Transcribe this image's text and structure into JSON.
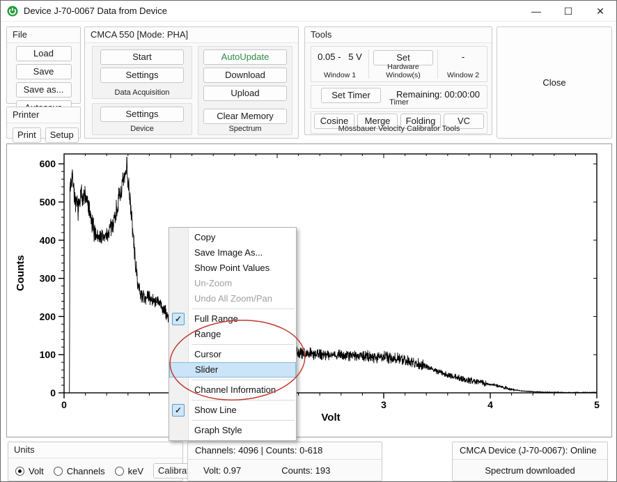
{
  "window": {
    "title": "Device J-70-0067 Data from Device",
    "controls": {
      "minimize": "—",
      "maximize": "☐",
      "close": "✕"
    }
  },
  "panels": {
    "file": {
      "title": "File",
      "load": "Load",
      "save": "Save",
      "save_as": "Save as...",
      "autosave": "Autosave"
    },
    "printer": {
      "title": "Printer",
      "print": "Print",
      "setup": "Setup"
    },
    "cmca": {
      "title": "CMCA 550 [Mode: PHA]",
      "start": "Start",
      "da_settings": "Settings",
      "da_caption": "Data Acquisition",
      "device_settings": "Settings",
      "device_caption": "Device",
      "autoupdate": "AutoUpdate",
      "autoupdate_color": "#2e8b46",
      "download": "Download",
      "upload": "Upload",
      "clear_memory": "Clear Memory",
      "spectrum_caption": "Spectrum"
    },
    "tools": {
      "title": "Tools",
      "window1_low": "0.05",
      "window1_dash": "-",
      "window1_high": "5 V",
      "window1_caption": "Window 1",
      "set_button": "Set",
      "hw_caption": "Hardware Window(s)",
      "window2_value": "-",
      "window2_caption": "Window 2",
      "set_timer": "Set Timer",
      "remaining": "Remaining: 00:00:00",
      "timer_caption": "Timer",
      "cosine": "Cosine",
      "merge": "Merge",
      "folding": "Folding",
      "vc": "VC",
      "moss_caption": "Mössbauer Velocity Calibrator Tools"
    },
    "close_button": "Close"
  },
  "context_menu": {
    "highlight_color": "#cce4f7",
    "check_glyph": "✓",
    "items": [
      {
        "label": "Copy"
      },
      {
        "label": "Save Image As..."
      },
      {
        "label": "Show Point Values"
      },
      {
        "label": "Un-Zoom",
        "disabled": true
      },
      {
        "label": "Undo All Zoom/Pan",
        "disabled": true
      },
      {
        "label": "Full Range",
        "checked": true
      },
      {
        "label": "Range"
      },
      {
        "label": "Cursor"
      },
      {
        "label": "Slider",
        "highlighted": true
      },
      {
        "label": "Channel Information"
      },
      {
        "label": "Show Line",
        "checked": true
      },
      {
        "label": "Graph Style"
      }
    ]
  },
  "statusbar": {
    "units": {
      "title": "Units",
      "volt": "Volt",
      "channels": "Channels",
      "kev": "keV",
      "calibrate": "Calibrate",
      "selected": "Volt"
    },
    "readout": {
      "header": "Channels: 4096 | Counts: 0-618",
      "volt": "Volt: 0.97",
      "counts": "Counts: 193"
    },
    "device": {
      "header": "CMCA Device (J-70-0067): Online",
      "status": "Spectrum downloaded"
    }
  },
  "annotation": {
    "shape": "ellipse",
    "color": "#c23a32"
  },
  "chart_data": {
    "type": "line",
    "xlabel": "Volt",
    "ylabel": "Counts",
    "xlim": [
      0,
      5
    ],
    "ylim": [
      0,
      626
    ],
    "xticks": [
      0,
      1,
      2,
      3,
      4,
      5
    ],
    "yticks": [
      0,
      100,
      200,
      300,
      400,
      500,
      600
    ],
    "x_minor_step": 0.2,
    "y_minor_step": 20,
    "counts_range_shown": "0-618",
    "series": [
      {
        "name": "PHA spectrum",
        "color": "#000000",
        "peak_volt": 0.59,
        "peak_counts": 618,
        "envelope": [
          [
            0.05,
            0
          ],
          [
            0.055,
            540
          ],
          [
            0.065,
            555
          ],
          [
            0.075,
            570
          ],
          [
            0.085,
            555
          ],
          [
            0.095,
            525
          ],
          [
            0.11,
            485
          ],
          [
            0.125,
            495
          ],
          [
            0.135,
            480
          ],
          [
            0.15,
            505
          ],
          [
            0.165,
            525
          ],
          [
            0.18,
            510
          ],
          [
            0.195,
            520
          ],
          [
            0.21,
            505
          ],
          [
            0.225,
            490
          ],
          [
            0.24,
            470
          ],
          [
            0.26,
            445
          ],
          [
            0.28,
            425
          ],
          [
            0.31,
            412
          ],
          [
            0.35,
            408
          ],
          [
            0.39,
            410
          ],
          [
            0.42,
            418
          ],
          [
            0.45,
            438
          ],
          [
            0.48,
            465
          ],
          [
            0.51,
            500
          ],
          [
            0.54,
            535
          ],
          [
            0.565,
            560
          ],
          [
            0.585,
            575
          ],
          [
            0.59,
            618
          ],
          [
            0.595,
            565
          ],
          [
            0.61,
            535
          ],
          [
            0.625,
            490
          ],
          [
            0.64,
            440
          ],
          [
            0.655,
            390
          ],
          [
            0.67,
            340
          ],
          [
            0.685,
            300
          ],
          [
            0.7,
            275
          ],
          [
            0.72,
            260
          ],
          [
            0.75,
            252
          ],
          [
            0.8,
            248
          ],
          [
            0.85,
            242
          ],
          [
            0.9,
            232
          ],
          [
            0.95,
            212
          ],
          [
            0.97,
            198
          ],
          [
            1.0,
            192
          ],
          [
            1.1,
            175
          ],
          [
            1.25,
            158
          ],
          [
            1.4,
            142
          ],
          [
            1.6,
            128
          ],
          [
            1.8,
            116
          ],
          [
            2.0,
            110
          ],
          [
            2.2,
            106
          ],
          [
            2.4,
            102
          ],
          [
            2.6,
            99
          ],
          [
            2.8,
            96
          ],
          [
            3.0,
            94
          ],
          [
            3.1,
            91
          ],
          [
            3.2,
            86
          ],
          [
            3.3,
            78
          ],
          [
            3.4,
            68
          ],
          [
            3.5,
            57
          ],
          [
            3.6,
            47
          ],
          [
            3.7,
            39
          ],
          [
            3.8,
            33
          ],
          [
            3.9,
            28
          ],
          [
            4.0,
            23
          ],
          [
            4.1,
            16
          ],
          [
            4.2,
            9
          ],
          [
            4.3,
            5
          ],
          [
            4.4,
            3
          ],
          [
            4.5,
            2
          ],
          [
            4.7,
            1
          ],
          [
            5.0,
            1
          ]
        ]
      }
    ]
  }
}
